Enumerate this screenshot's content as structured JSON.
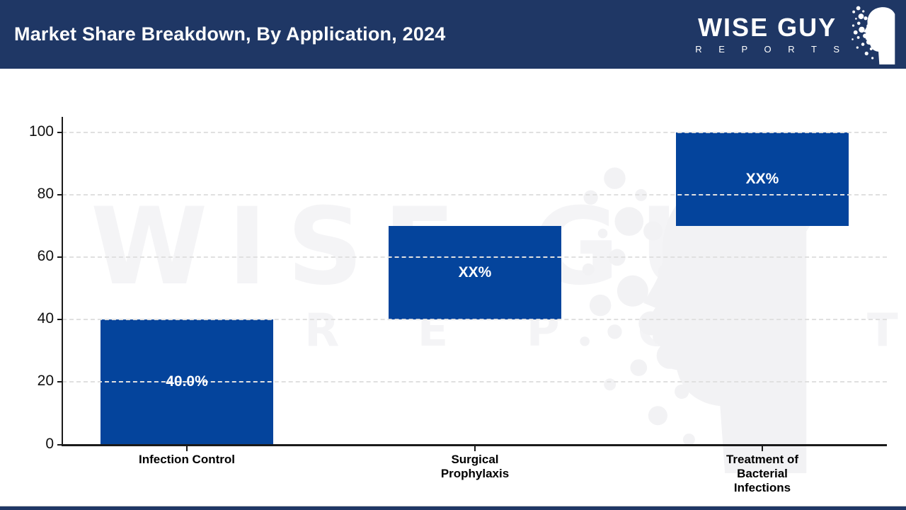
{
  "header": {
    "title": "Market Share Breakdown, By Application, 2024",
    "logo": {
      "line1": "WISE GUY",
      "line2": "R E P O R T S"
    }
  },
  "watermark": {
    "line1": "WISE GUY",
    "line2": "R E P O R T S"
  },
  "colors": {
    "header_navy": "#1f3765",
    "bar_blue": "#04449c",
    "gridline_gray": "#e0e0e0",
    "watermark_gray": "#f4f4f6"
  },
  "chart_data": {
    "type": "bar",
    "variant": "waterfall",
    "title": "Market Share Breakdown, By Application, 2024",
    "categories": [
      "Infection Control",
      "Surgical Prophylaxis",
      "Treatment of Bacterial Infections"
    ],
    "categories_lines": [
      [
        "Infection Control"
      ],
      [
        "Surgical",
        "Prophylaxis"
      ],
      [
        "Treatment of",
        "Bacterial",
        "Infections"
      ]
    ],
    "series": [
      {
        "name": "Market Share",
        "segments": [
          {
            "category": "Infection Control",
            "start": 0,
            "end": 40,
            "label": "40.0%"
          },
          {
            "category": "Surgical Prophylaxis",
            "start": 40,
            "end": 70,
            "label": "XX%"
          },
          {
            "category": "Treatment of Bacterial Infections",
            "start": 70,
            "end": 100,
            "label": "XX%"
          }
        ]
      }
    ],
    "bar_labels": [
      "40.0%",
      "XX%",
      "XX%"
    ],
    "ylim": [
      0,
      100
    ],
    "yticks": [
      0,
      20,
      40,
      60,
      80,
      100
    ],
    "xlabel": "",
    "ylabel": "",
    "grid": "horizontal-dashed",
    "legend": "none"
  }
}
